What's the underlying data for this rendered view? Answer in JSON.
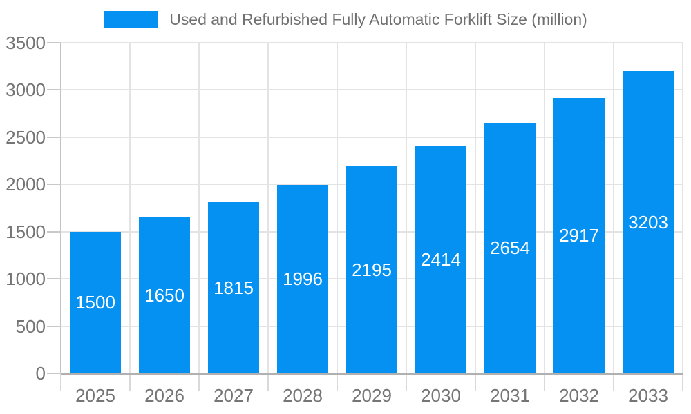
{
  "chart_data": {
    "type": "bar",
    "title": "Used and Refurbished Fully Automatic Forklift Size (million)",
    "categories": [
      "2025",
      "2026",
      "2027",
      "2028",
      "2029",
      "2030",
      "2031",
      "2032",
      "2033"
    ],
    "values": [
      1500,
      1650,
      1815,
      1996,
      2195,
      2414,
      2654,
      2917,
      3203
    ],
    "bar_value_labels": [
      "1500",
      "1650",
      "1815",
      "1996",
      "2195",
      "2414",
      "2654",
      "2917",
      "3203"
    ],
    "xlabel": "",
    "ylabel": "",
    "ylim": [
      0,
      3500
    ],
    "ytick_step": 500,
    "ytick_labels": [
      "0",
      "500",
      "1000",
      "1500",
      "2000",
      "2500",
      "3000",
      "3500"
    ],
    "grid": true,
    "legend_position": "top-center",
    "colors": {
      "bar": "#0591f2",
      "bar_label_text": "#ffffff",
      "axis_tick_text": "#757575",
      "legend_text": "#707070",
      "gridline": "#e3e3e3",
      "axis_line": "#b0b0b0",
      "background": "#ffffff"
    }
  },
  "legend": {
    "label": "Used and Refurbished Fully Automatic Forklift Size (million)",
    "swatch_color": "#0591f2"
  }
}
